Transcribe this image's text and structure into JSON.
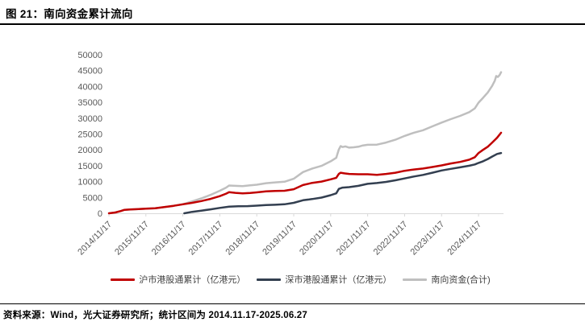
{
  "header": {
    "title": "图 21：南向资金累计流向"
  },
  "footer": {
    "text": "资料来源：Wind，光大证券研究所；统计区间为 2014.11.17-2025.06.27"
  },
  "colors": {
    "sh_red": "#c00000",
    "sz_navy": "#333f50",
    "total_gray": "#bfbfbf",
    "axis_line": "#d9d9d9",
    "tick_text": "#595959"
  },
  "chart_data": {
    "type": "line",
    "title": "南向资金累计流向",
    "xlabel": "",
    "ylabel": "",
    "grid": false,
    "legend_position": "bottom",
    "ylim": [
      0,
      50000
    ],
    "xlim": [
      2014.88,
      2025.49
    ],
    "y_ticks": [
      0,
      5000,
      10000,
      15000,
      20000,
      25000,
      30000,
      35000,
      40000,
      45000,
      50000
    ],
    "x_ticks": [
      {
        "label": "2014/11/17",
        "t": 2014.88
      },
      {
        "label": "2015/11/17",
        "t": 2015.88
      },
      {
        "label": "2016/11/17",
        "t": 2016.88
      },
      {
        "label": "2017/11/17",
        "t": 2017.88
      },
      {
        "label": "2018/11/17",
        "t": 2018.88
      },
      {
        "label": "2019/11/17",
        "t": 2019.88
      },
      {
        "label": "2020/11/17",
        "t": 2020.88
      },
      {
        "label": "2021/11/17",
        "t": 2021.88
      },
      {
        "label": "2022/11/17",
        "t": 2022.88
      },
      {
        "label": "2023/11/17",
        "t": 2023.88
      },
      {
        "label": "2024/11/17",
        "t": 2024.88
      }
    ],
    "series": [
      {
        "name": "沪市港股通累计（亿港元）",
        "color": "#c00000",
        "points": [
          [
            2014.88,
            0
          ],
          [
            2015.05,
            250
          ],
          [
            2015.2,
            700
          ],
          [
            2015.3,
            1100
          ],
          [
            2015.45,
            1200
          ],
          [
            2015.63,
            1300
          ],
          [
            2015.88,
            1450
          ],
          [
            2016.13,
            1600
          ],
          [
            2016.38,
            1950
          ],
          [
            2016.63,
            2350
          ],
          [
            2016.88,
            2850
          ],
          [
            2017.13,
            3300
          ],
          [
            2017.38,
            3850
          ],
          [
            2017.63,
            4550
          ],
          [
            2017.88,
            5400
          ],
          [
            2018.05,
            6200
          ],
          [
            2018.13,
            6650
          ],
          [
            2018.3,
            6450
          ],
          [
            2018.5,
            6300
          ],
          [
            2018.7,
            6400
          ],
          [
            2018.88,
            6600
          ],
          [
            2019.13,
            6900
          ],
          [
            2019.38,
            7050
          ],
          [
            2019.63,
            7100
          ],
          [
            2019.88,
            7600
          ],
          [
            2020.13,
            8900
          ],
          [
            2020.38,
            9600
          ],
          [
            2020.63,
            10000
          ],
          [
            2020.88,
            10700
          ],
          [
            2021.03,
            11200
          ],
          [
            2021.1,
            12400
          ],
          [
            2021.15,
            12800
          ],
          [
            2021.25,
            12600
          ],
          [
            2021.38,
            12400
          ],
          [
            2021.63,
            12300
          ],
          [
            2021.88,
            12300
          ],
          [
            2022.13,
            12100
          ],
          [
            2022.38,
            12400
          ],
          [
            2022.63,
            12800
          ],
          [
            2022.88,
            13400
          ],
          [
            2023.13,
            13800
          ],
          [
            2023.38,
            14100
          ],
          [
            2023.63,
            14600
          ],
          [
            2023.88,
            15100
          ],
          [
            2024.13,
            15700
          ],
          [
            2024.38,
            16200
          ],
          [
            2024.63,
            16900
          ],
          [
            2024.78,
            17700
          ],
          [
            2024.88,
            19000
          ],
          [
            2025.0,
            20000
          ],
          [
            2025.13,
            21000
          ],
          [
            2025.25,
            22300
          ],
          [
            2025.38,
            23800
          ],
          [
            2025.49,
            25400
          ]
        ]
      },
      {
        "name": "深市港股通累计（亿港元）",
        "color": "#333f50",
        "points": [
          [
            2016.92,
            0
          ],
          [
            2017.13,
            450
          ],
          [
            2017.38,
            850
          ],
          [
            2017.63,
            1250
          ],
          [
            2017.88,
            1700
          ],
          [
            2018.13,
            2100
          ],
          [
            2018.38,
            2200
          ],
          [
            2018.63,
            2250
          ],
          [
            2018.88,
            2400
          ],
          [
            2019.13,
            2600
          ],
          [
            2019.38,
            2700
          ],
          [
            2019.63,
            2850
          ],
          [
            2019.88,
            3300
          ],
          [
            2020.13,
            4100
          ],
          [
            2020.38,
            4500
          ],
          [
            2020.63,
            4950
          ],
          [
            2020.88,
            5700
          ],
          [
            2021.03,
            6300
          ],
          [
            2021.1,
            7700
          ],
          [
            2021.2,
            8100
          ],
          [
            2021.38,
            8250
          ],
          [
            2021.63,
            8650
          ],
          [
            2021.88,
            9300
          ],
          [
            2022.13,
            9550
          ],
          [
            2022.38,
            9900
          ],
          [
            2022.63,
            10400
          ],
          [
            2022.88,
            11000
          ],
          [
            2023.13,
            11600
          ],
          [
            2023.38,
            12100
          ],
          [
            2023.63,
            12800
          ],
          [
            2023.88,
            13500
          ],
          [
            2024.13,
            14000
          ],
          [
            2024.38,
            14500
          ],
          [
            2024.63,
            15000
          ],
          [
            2024.78,
            15400
          ],
          [
            2024.88,
            15900
          ],
          [
            2025.0,
            16400
          ],
          [
            2025.13,
            17100
          ],
          [
            2025.25,
            17900
          ],
          [
            2025.38,
            18700
          ],
          [
            2025.49,
            19000
          ]
        ]
      },
      {
        "name": "南向资金(合计)",
        "color": "#bfbfbf",
        "points": [
          [
            2014.88,
            0
          ],
          [
            2015.05,
            250
          ],
          [
            2015.2,
            700
          ],
          [
            2015.3,
            1100
          ],
          [
            2015.45,
            1200
          ],
          [
            2015.63,
            1300
          ],
          [
            2015.88,
            1450
          ],
          [
            2016.13,
            1600
          ],
          [
            2016.38,
            1950
          ],
          [
            2016.63,
            2350
          ],
          [
            2016.88,
            2850
          ],
          [
            2017.13,
            3750
          ],
          [
            2017.38,
            4700
          ],
          [
            2017.63,
            5800
          ],
          [
            2017.88,
            7100
          ],
          [
            2018.05,
            8100
          ],
          [
            2018.13,
            8750
          ],
          [
            2018.3,
            8650
          ],
          [
            2018.5,
            8550
          ],
          [
            2018.7,
            8800
          ],
          [
            2018.88,
            9000
          ],
          [
            2019.13,
            9500
          ],
          [
            2019.38,
            9750
          ],
          [
            2019.63,
            9950
          ],
          [
            2019.88,
            10900
          ],
          [
            2020.13,
            13000
          ],
          [
            2020.38,
            14100
          ],
          [
            2020.63,
            14950
          ],
          [
            2020.88,
            16400
          ],
          [
            2021.03,
            17500
          ],
          [
            2021.1,
            20100
          ],
          [
            2021.15,
            21200
          ],
          [
            2021.2,
            20900
          ],
          [
            2021.28,
            21100
          ],
          [
            2021.38,
            20700
          ],
          [
            2021.5,
            20800
          ],
          [
            2021.63,
            21000
          ],
          [
            2021.75,
            21400
          ],
          [
            2021.88,
            21600
          ],
          [
            2022.13,
            21650
          ],
          [
            2022.38,
            22300
          ],
          [
            2022.63,
            23200
          ],
          [
            2022.88,
            24400
          ],
          [
            2023.13,
            25400
          ],
          [
            2023.38,
            26200
          ],
          [
            2023.63,
            27400
          ],
          [
            2023.88,
            28600
          ],
          [
            2024.13,
            29700
          ],
          [
            2024.38,
            30700
          ],
          [
            2024.63,
            31900
          ],
          [
            2024.78,
            33100
          ],
          [
            2024.88,
            34900
          ],
          [
            2025.0,
            36400
          ],
          [
            2025.13,
            38100
          ],
          [
            2025.25,
            40200
          ],
          [
            2025.32,
            41800
          ],
          [
            2025.36,
            43300
          ],
          [
            2025.4,
            43000
          ],
          [
            2025.45,
            43600
          ],
          [
            2025.49,
            44500
          ]
        ]
      }
    ]
  }
}
